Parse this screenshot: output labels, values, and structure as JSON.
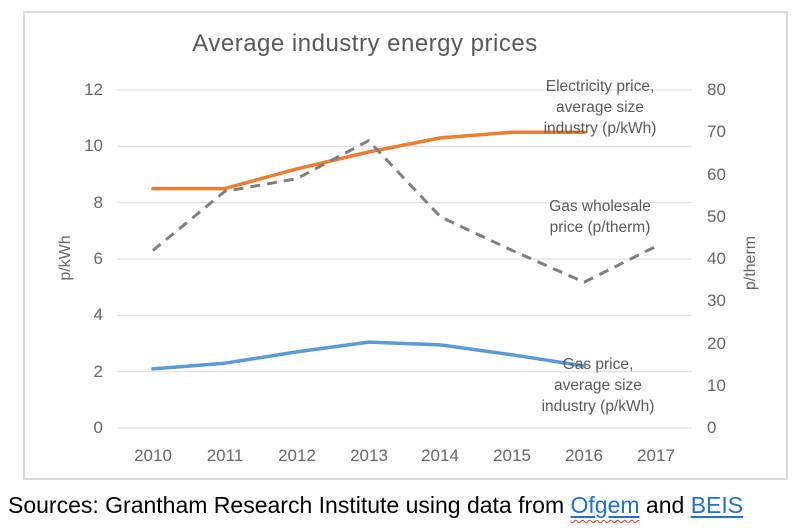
{
  "chart": {
    "title": "Average industry energy prices",
    "left_axis": {
      "title": "p/kWh",
      "ticks": [
        0,
        2,
        4,
        6,
        8,
        10,
        12
      ],
      "max": 12
    },
    "right_axis": {
      "title": "p/therm",
      "ticks": [
        0,
        10,
        20,
        30,
        40,
        50,
        60,
        70,
        80
      ],
      "max": 80
    },
    "x_axis": {
      "years": [
        "2010",
        "2011",
        "2012",
        "2013",
        "2014",
        "2015",
        "2016",
        "2017"
      ]
    }
  },
  "chart_data": {
    "type": "line",
    "title": "Average industry energy prices",
    "categories": [
      2010,
      2011,
      2012,
      2013,
      2014,
      2015,
      2016,
      2017
    ],
    "ylabel_left": "p/kWh",
    "ylabel_right": "p/therm",
    "ylim_left": [
      0,
      12
    ],
    "ylim_right": [
      0,
      80
    ],
    "grid": true,
    "legend": "inline-labels",
    "series": [
      {
        "name": "Electricity price, average size industry (p/kWh)",
        "label_lines": [
          "Electricity price,",
          "average size",
          "industry (p/kWh)"
        ],
        "axis": "left",
        "unit": "p/kWh",
        "color": "#ED7D31",
        "style": "solid",
        "values": [
          8.5,
          8.5,
          9.2,
          9.8,
          10.3,
          10.5,
          10.5,
          null
        ]
      },
      {
        "name": "Gas wholesale price (p/therm)",
        "label_lines": [
          "Gas wholesale",
          "price (p/therm)"
        ],
        "axis": "right",
        "unit": "p/therm",
        "color": "#7F7F7F",
        "style": "dashed",
        "values": [
          42,
          56,
          59,
          68,
          50,
          42,
          34.5,
          43
        ]
      },
      {
        "name": "Gas price, average size industry (p/kWh)",
        "label_lines": [
          "Gas price,",
          "average size",
          "industry (p/kWh)"
        ],
        "axis": "left",
        "unit": "p/kWh",
        "color": "#5B9BD5",
        "style": "solid",
        "values": [
          2.1,
          2.3,
          2.7,
          3.05,
          2.95,
          2.6,
          2.2,
          null
        ]
      }
    ]
  },
  "colors": {
    "grid": "#D9D9D9",
    "frame_border": "#D9D9D9",
    "tick_text": "#666666",
    "title_text": "#595959",
    "link_blue": "#1E6FD9",
    "squiggle_red": "#E0392E"
  },
  "sources": {
    "prefix": "Sources: Grantham Research Institute using data from ",
    "link_ofgem": "Ofgem",
    "separator": " and ",
    "link_beis": "BEIS"
  }
}
